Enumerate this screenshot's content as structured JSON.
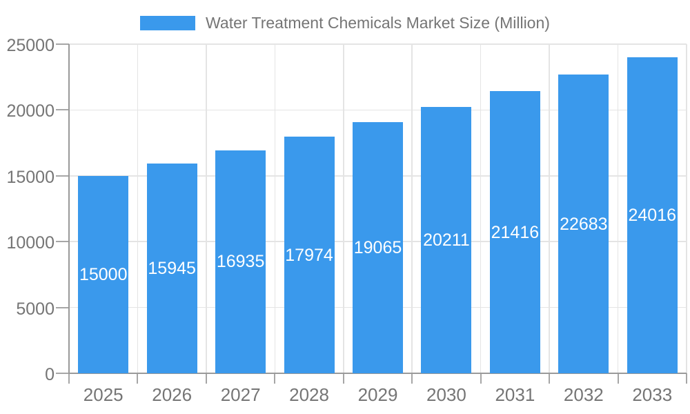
{
  "legend": {
    "label": "Water Treatment Chemicals Market Size (Million)"
  },
  "colors": {
    "bar": "#3A99EC",
    "grid": "#E4E4E4",
    "axis": "#999999",
    "tick": "#A6A6A6",
    "text": "#757575",
    "bar_label": "#FFFFFF",
    "background": "#FFFFFF"
  },
  "chart_data": {
    "type": "bar",
    "title": "Water Treatment Chemicals Market Size (Million)",
    "categories": [
      "2025",
      "2026",
      "2027",
      "2028",
      "2029",
      "2030",
      "2031",
      "2032",
      "2033"
    ],
    "values": [
      15000,
      15945,
      16935,
      17974,
      19065,
      20211,
      21416,
      22683,
      24016
    ],
    "xlabel": "",
    "ylabel": "",
    "ylim": [
      0,
      25000
    ],
    "yticks": [
      0,
      5000,
      10000,
      15000,
      20000,
      25000
    ],
    "grid": true,
    "legend_position": "top",
    "value_labels": "inside-center"
  }
}
